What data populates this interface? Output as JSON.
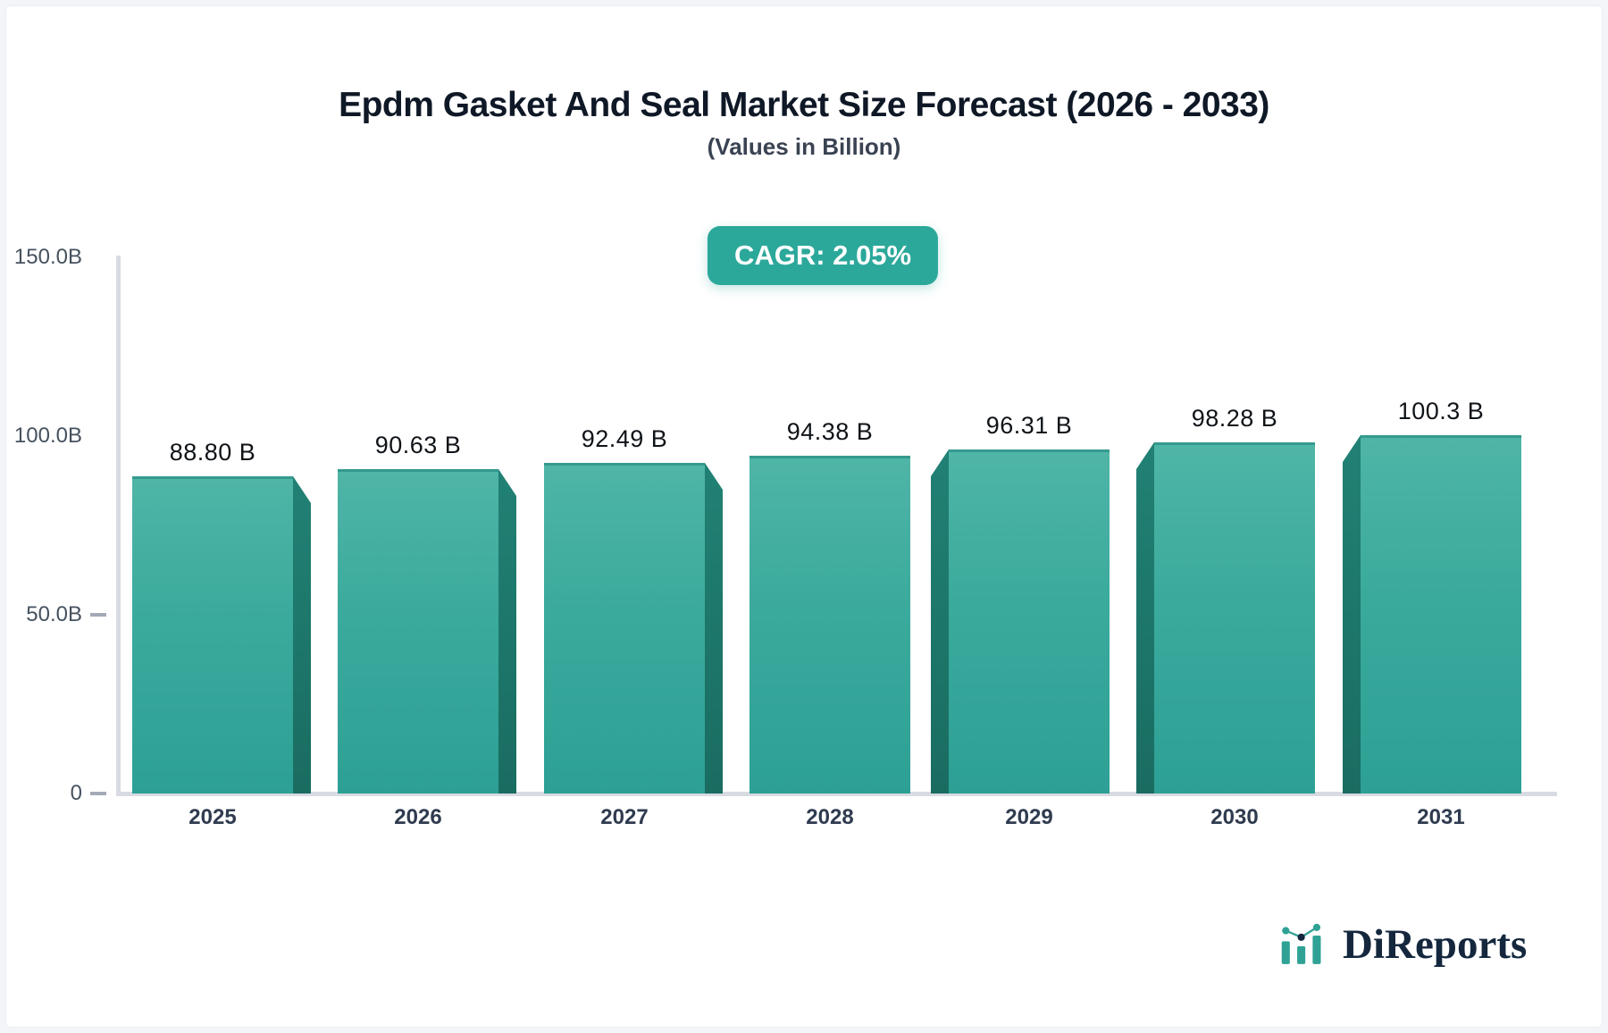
{
  "colors": {
    "accent_teal": "#2ba89a",
    "bar_face_top": "#4fb5a7",
    "bar_face_bottom": "#2da095",
    "bar_side_dark": "#1c7a6e",
    "axis_gray": "#d8dbe2",
    "logo_navy": "#14273d"
  },
  "header": {
    "title": "Epdm Gasket And Seal Market Size Forecast (2026 - 2033)",
    "subtitle": "(Values in Billion)"
  },
  "badge": {
    "label": "CAGR: 2.05%"
  },
  "chart_data": {
    "type": "bar",
    "style": "3d-column",
    "title": "Epdm Gasket And Seal Market Size Forecast (2026 - 2033)",
    "subtitle": "(Values in Billion)",
    "categories": [
      "2025",
      "2026",
      "2027",
      "2028",
      "2029",
      "2030",
      "2031"
    ],
    "values": [
      88.8,
      90.63,
      92.49,
      94.38,
      96.31,
      98.28,
      100.3
    ],
    "value_labels": [
      "88.80 B",
      "90.63 B",
      "92.49 B",
      "94.38 B",
      "96.31 B",
      "98.28 B",
      "100.3 B"
    ],
    "xlabel": "",
    "ylabel": "",
    "ylim": [
      0,
      150
    ],
    "yticks": [
      {
        "label": "150.0B",
        "value": 150,
        "dash": false
      },
      {
        "label": "100.0B",
        "value": 100,
        "dash": false
      },
      {
        "label": "50.0B",
        "value": 50,
        "dash": true
      },
      {
        "label": "0",
        "value": 0,
        "dash": true
      }
    ],
    "grid": "off",
    "legend": "none"
  },
  "logo": {
    "icon": "bar-line-chart-logo-icon",
    "text": "DiReports"
  }
}
